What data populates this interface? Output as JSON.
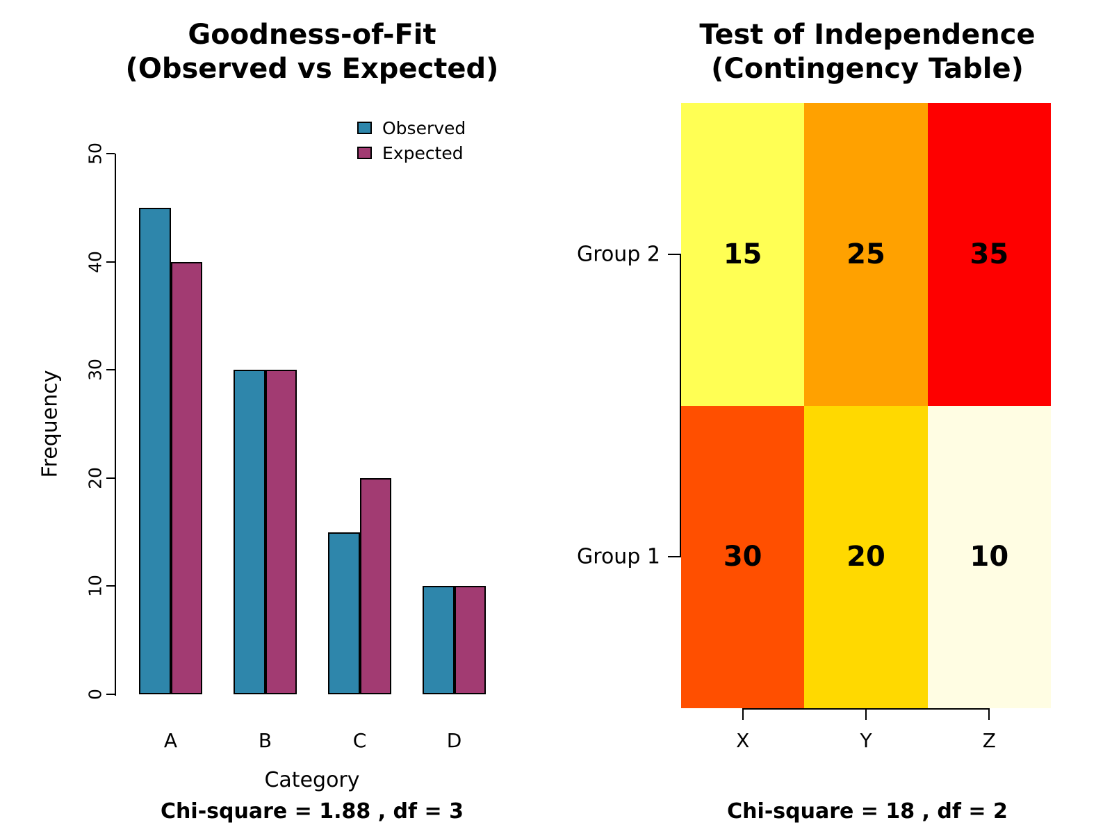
{
  "figure": {
    "background": "#FFFFFF",
    "text_color": "#000000",
    "axis_color": "#000000"
  },
  "chart_data": [
    {
      "type": "bar",
      "title": "Goodness-of-Fit",
      "title_line2": "(Observed vs Expected)",
      "xlabel": "Category",
      "ylabel": "Frequency",
      "annotation": "Chi-square = 1.88 , df = 3",
      "categories": [
        "A",
        "B",
        "C",
        "D"
      ],
      "series": [
        {
          "name": "Observed",
          "color": "#2E86AB",
          "values": [
            45,
            30,
            15,
            10
          ]
        },
        {
          "name": "Expected",
          "color": "#A23B72",
          "values": [
            40,
            30,
            20,
            10
          ]
        }
      ],
      "ylim": [
        0,
        50
      ],
      "yticks": [
        0,
        10,
        20,
        30,
        40,
        50
      ],
      "legend_position": "top-right",
      "grid": false,
      "bar_border_color": "#000000"
    },
    {
      "type": "heatmap",
      "title": "Test of Independence",
      "title_line2": "(Contingency Table)",
      "annotation": "Chi-square = 18 , df = 2",
      "columns": [
        "X",
        "Y",
        "Z"
      ],
      "rows": [
        {
          "label": "Group 2",
          "cells": [
            {
              "value": 15,
              "color": "#FFFF54"
            },
            {
              "value": 25,
              "color": "#FFA100"
            },
            {
              "value": 35,
              "color": "#FE0000"
            }
          ]
        },
        {
          "label": "Group 1",
          "cells": [
            {
              "value": 30,
              "color": "#FF4F00"
            },
            {
              "value": 20,
              "color": "#FFD900"
            },
            {
              "value": 10,
              "color": "#FFFDE3"
            }
          ]
        }
      ]
    }
  ]
}
